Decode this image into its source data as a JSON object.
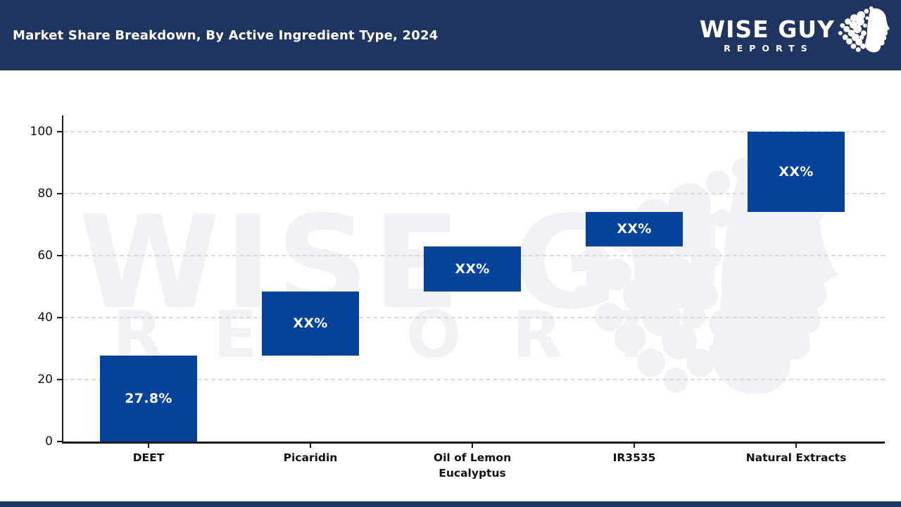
{
  "header": {
    "title": "Market Share Breakdown, By Active Ingredient Type, 2024",
    "logo": {
      "wordmark": "WISE GUY",
      "subtitle": "REPORTS"
    }
  },
  "watermark": {
    "line1": "WISE GUY",
    "line2": "REPORTS"
  },
  "colors": {
    "header_bg": "#1F345F",
    "footer_bg": "#1F345F",
    "bar": "#04439B",
    "gridline": "#DBDBDB",
    "axis": "#1A1A1A",
    "watermark": "#F2F2F5",
    "bar_label": "#FFFFFF"
  },
  "chart_data": {
    "type": "bar",
    "subtype": "waterfall",
    "title": "Market Share Breakdown, By Active Ingredient Type, 2024",
    "categories": [
      "DEET",
      "Picaridin",
      "Oil of Lemon\nEucalyptus",
      "IR3535",
      "Natural Extracts"
    ],
    "segments": [
      {
        "category": "DEET",
        "start": 0,
        "end": 27.8,
        "label": "27.8%"
      },
      {
        "category": "Picaridin",
        "start": 27.8,
        "end": 48.4,
        "label": "XX%"
      },
      {
        "category": "Oil of Lemon Eucalyptus",
        "start": 48.4,
        "end": 63.0,
        "label": "XX%"
      },
      {
        "category": "IR3535",
        "start": 63.0,
        "end": 74.1,
        "label": "XX%"
      },
      {
        "category": "Natural Extracts",
        "start": 74.1,
        "end": 100.0,
        "label": "XX%"
      }
    ],
    "y_ticks": [
      0,
      20,
      40,
      60,
      80,
      100
    ],
    "ylim": [
      0,
      105.2
    ],
    "xlabel": "",
    "ylabel": "",
    "grid": "horizontal-dashed",
    "legend": "none",
    "bar_color": "#04439B",
    "value_label_color": "#FFFFFF"
  }
}
